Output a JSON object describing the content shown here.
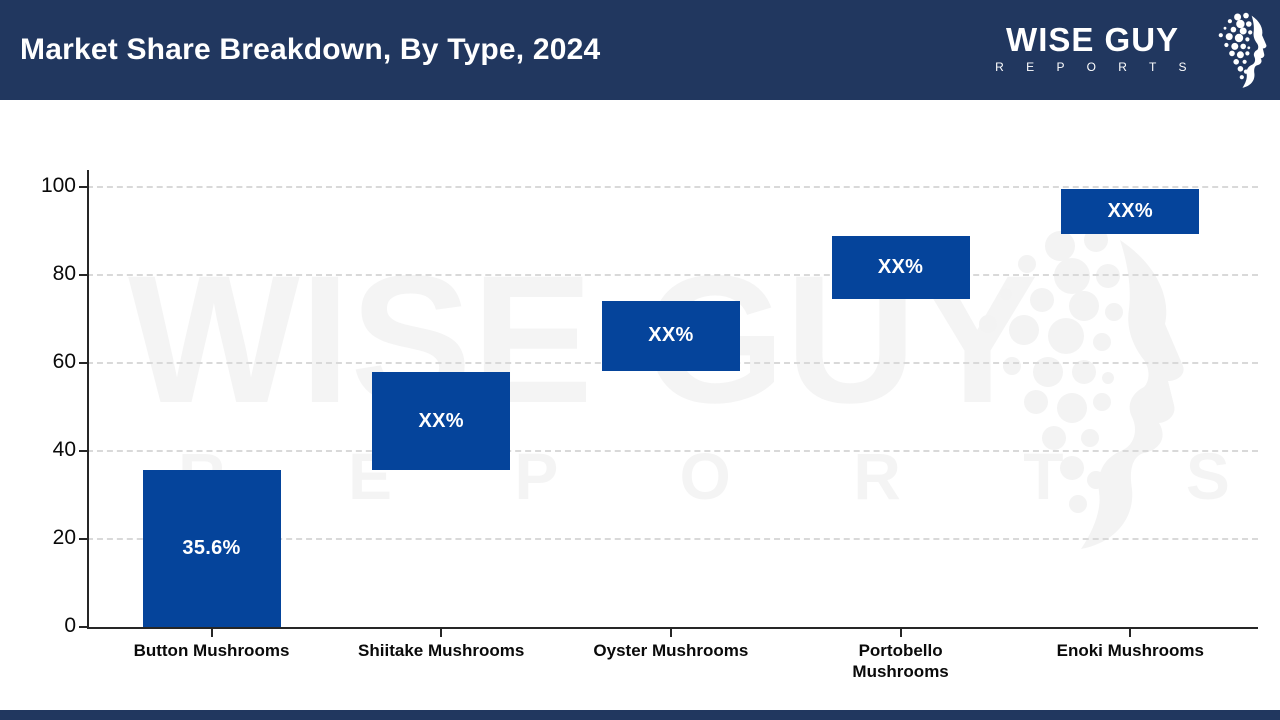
{
  "header": {
    "title": "Market Share Breakdown, By Type, 2024",
    "logo": {
      "line1": "WISE GUY",
      "line2": "R E P O R T S"
    }
  },
  "watermark": {
    "line1": "WISE GUY",
    "line2": "R E P O R T S"
  },
  "colors": {
    "header_bg": "#21375f",
    "bar_blue": "#05449b",
    "axis": "#262626",
    "gridline": "#d9d9d9",
    "bar_label_text": "#ffffff",
    "watermark_gray": "#f3f3f3"
  },
  "chart_data": {
    "type": "bar",
    "subtype": "waterfall-floating-bars",
    "title": "Market Share Breakdown, By Type, 2024",
    "xlabel": "",
    "ylabel": "",
    "ylim": [
      0,
      104
    ],
    "yticks": [
      0,
      20,
      40,
      60,
      80,
      100
    ],
    "grid": "dashed horizontal",
    "legend": "none",
    "categories": [
      "Button Mushrooms",
      "Shiitake Mushrooms",
      "Oyster Mushrooms",
      "Portobello\nMushrooms",
      "Enoki Mushrooms"
    ],
    "bars": [
      {
        "category": "Button Mushrooms",
        "start": 0,
        "end": 35.6,
        "label": "35.6%"
      },
      {
        "category": "Shiitake Mushrooms",
        "start": 35.7,
        "end": 57.9,
        "label": "XX%"
      },
      {
        "category": "Oyster Mushrooms",
        "start": 58.1,
        "end": 74.2,
        "label": "XX%"
      },
      {
        "category": "Portobello\nMushrooms",
        "start": 74.5,
        "end": 88.9,
        "label": "XX%"
      },
      {
        "category": "Enoki Mushrooms",
        "start": 89.3,
        "end": 99.6,
        "label": "XX%"
      }
    ]
  }
}
